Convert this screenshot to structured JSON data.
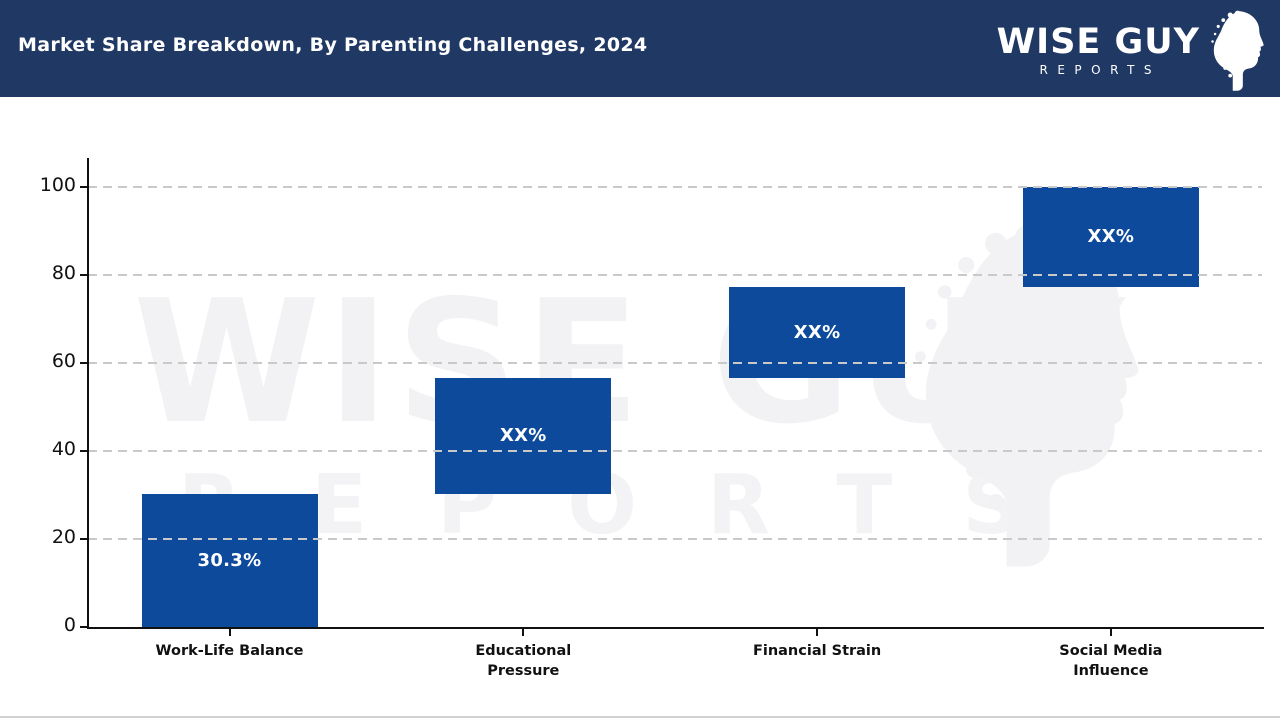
{
  "header": {
    "title": "Market Share Breakdown, By Parenting Challenges, 2024",
    "logo": {
      "name": "WISE GUY",
      "sub": "REPORTS"
    },
    "bg_color": "#203864"
  },
  "watermark": {
    "line1": "WISE GUY",
    "line2": "REPORTS"
  },
  "chart_data": {
    "type": "bar",
    "variant": "waterfall-floating-bars",
    "title": "Market Share Breakdown, By Parenting Challenges, 2024",
    "categories": [
      "Work-Life Balance",
      "Educational Pressure",
      "Financial Strain",
      "Social Media Influence"
    ],
    "category_lines": [
      [
        "Work-Life Balance"
      ],
      [
        "Educational",
        "Pressure"
      ],
      [
        "Financial Strain"
      ],
      [
        "Social Media",
        "Influence"
      ]
    ],
    "series": [
      {
        "name": "Market Share %",
        "segments": [
          {
            "category": "Work-Life Balance",
            "start": 0,
            "end": 30.3,
            "label": "30.3%"
          },
          {
            "category": "Educational Pressure",
            "start": 30.3,
            "end": 56.6,
            "label": "XX%"
          },
          {
            "category": "Financial Strain",
            "start": 56.6,
            "end": 77.3,
            "label": "XX%"
          },
          {
            "category": "Social Media Influence",
            "start": 77.3,
            "end": 100,
            "label": "XX%"
          }
        ]
      }
    ],
    "xlabel": "",
    "ylabel": "",
    "ylim": [
      0,
      100
    ],
    "yticks": [
      0,
      20,
      40,
      60,
      80,
      100
    ],
    "grid": "horizontal-dashed",
    "legend": "none",
    "bar_color": "#0e4a9c",
    "bar_label_color": "#ffffff",
    "grid_color": "#c9c9c9"
  }
}
